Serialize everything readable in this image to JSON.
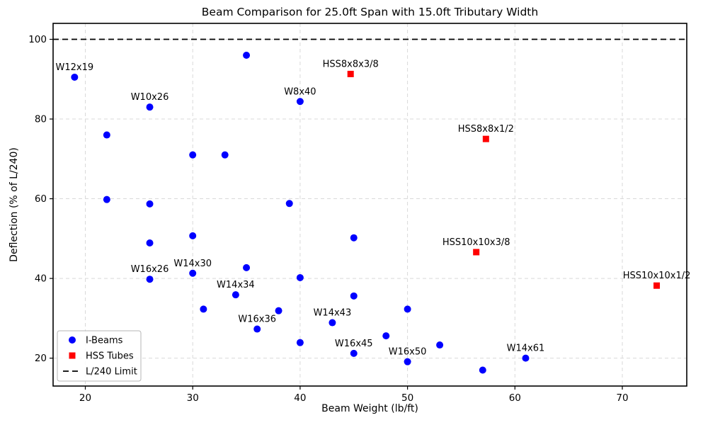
{
  "chart_data": {
    "type": "scatter",
    "title": "Beam Comparison for 25.0ft Span with 15.0ft Tributary Width",
    "xlabel": "Beam Weight (lb/ft)",
    "ylabel": "Deflection (% of L/240)",
    "xlim": [
      17,
      76
    ],
    "ylim": [
      13,
      104
    ],
    "xticks": [
      20,
      30,
      40,
      50,
      60,
      70
    ],
    "yticks": [
      20,
      40,
      60,
      80,
      100
    ],
    "grid": true,
    "legend_position": "lower-left",
    "limit_line": {
      "y": 100,
      "label": "L/240 Limit",
      "color": "#000000",
      "style": "dashed"
    },
    "series": [
      {
        "name": "I-Beams",
        "marker": "circle",
        "color": "#0000ff",
        "points": [
          {
            "x": 19,
            "y": 90.5,
            "label": "W12x19"
          },
          {
            "x": 22,
            "y": 76
          },
          {
            "x": 22,
            "y": 59.8
          },
          {
            "x": 26,
            "y": 83,
            "label": "W10x26"
          },
          {
            "x": 26,
            "y": 58.7
          },
          {
            "x": 26,
            "y": 48.9
          },
          {
            "x": 26,
            "y": 39.8,
            "label": "W16x26"
          },
          {
            "x": 30,
            "y": 71
          },
          {
            "x": 30,
            "y": 50.7
          },
          {
            "x": 30,
            "y": 41.3,
            "label": "W14x30"
          },
          {
            "x": 31,
            "y": 32.3
          },
          {
            "x": 33,
            "y": 71
          },
          {
            "x": 34,
            "y": 35.9,
            "label": "W14x34"
          },
          {
            "x": 35,
            "y": 96
          },
          {
            "x": 35,
            "y": 42.7
          },
          {
            "x": 36,
            "y": 27.3,
            "label": "W16x36"
          },
          {
            "x": 38,
            "y": 31.9
          },
          {
            "x": 39,
            "y": 58.8
          },
          {
            "x": 40,
            "y": 84.4,
            "label": "W8x40"
          },
          {
            "x": 40,
            "y": 40.2
          },
          {
            "x": 40,
            "y": 23.9
          },
          {
            "x": 43,
            "y": 28.9,
            "label": "W14x43"
          },
          {
            "x": 45,
            "y": 50.2
          },
          {
            "x": 45,
            "y": 35.6
          },
          {
            "x": 45,
            "y": 21.2,
            "label": "W16x45"
          },
          {
            "x": 48,
            "y": 25.6
          },
          {
            "x": 50,
            "y": 32.3
          },
          {
            "x": 50,
            "y": 19.1,
            "label": "W16x50"
          },
          {
            "x": 53,
            "y": 23.3
          },
          {
            "x": 57,
            "y": 17
          },
          {
            "x": 61,
            "y": 20,
            "label": "W14x61"
          }
        ]
      },
      {
        "name": "HSS Tubes",
        "marker": "square",
        "color": "#ff0000",
        "points": [
          {
            "x": 44.7,
            "y": 91.3,
            "label": "HSS8x8x3/8"
          },
          {
            "x": 57.3,
            "y": 75,
            "label": "HSS8x8x1/2"
          },
          {
            "x": 56.4,
            "y": 46.6,
            "label": "HSS10x10x3/8"
          },
          {
            "x": 73.2,
            "y": 38.2,
            "label": "HSS10x10x1/2"
          }
        ]
      }
    ],
    "legend_entries": [
      "I-Beams",
      "HSS Tubes",
      "L/240 Limit"
    ]
  }
}
